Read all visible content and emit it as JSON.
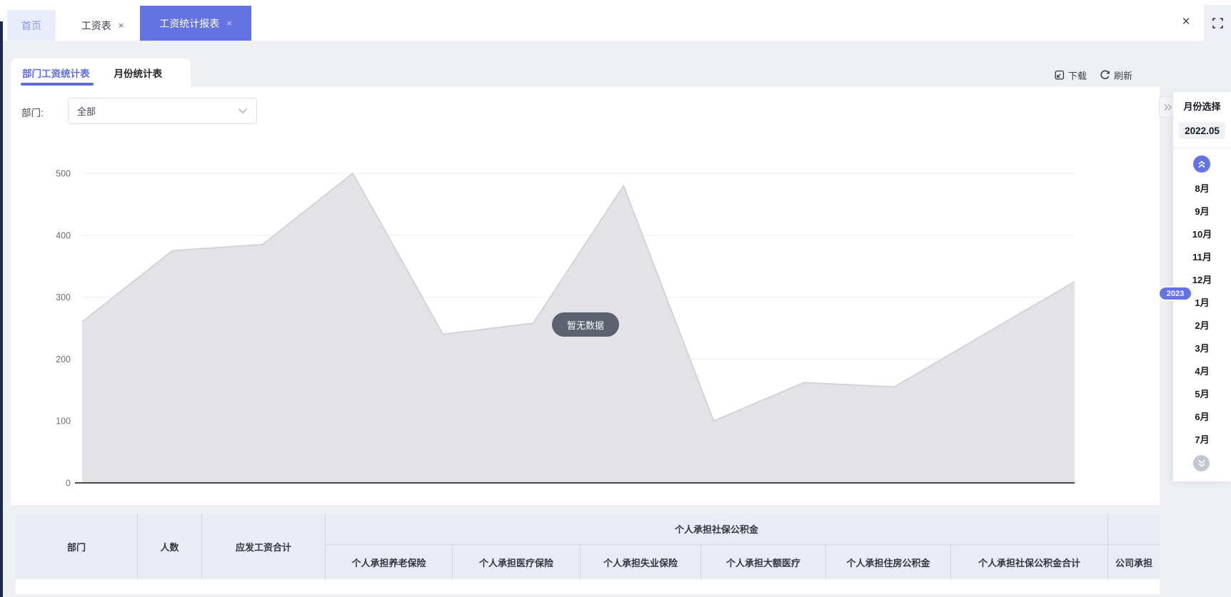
{
  "colors": {
    "accent": "#6572e2",
    "home_tab_bg": "#e9ecfb",
    "table_header_bg": "#e9ecf4",
    "nav_strip": "#1c2a4e"
  },
  "window": {
    "close_label": "×"
  },
  "tab_bar": {
    "home": {
      "label": "首页"
    },
    "payroll": {
      "label": "工资表",
      "close": "×"
    },
    "report": {
      "label": "工资统计报表",
      "close": "×"
    }
  },
  "sub_tabs": {
    "dept": "部门工资统计表",
    "month": "月份统计表"
  },
  "toolbar": {
    "download": "下载",
    "refresh": "刷新"
  },
  "filter": {
    "label": "部门:",
    "value": "全部"
  },
  "chart_data": {
    "type": "area",
    "series": [
      {
        "name": "部门工资",
        "values": [
          260,
          375,
          385,
          500,
          240,
          258,
          480,
          100,
          162,
          155,
          240,
          325
        ]
      }
    ],
    "ylim": [
      0,
      500
    ],
    "yticks": [
      0,
      100,
      200,
      300,
      400,
      500
    ],
    "grid": true,
    "x_tick_labels": [],
    "legend": "none",
    "area_fill": "#e3e3e7",
    "area_stroke": "#d3d3d8",
    "grid_color": "#ececf2",
    "axis_color": "#474747",
    "tick_label_color": "#6e6e73",
    "overlay_label": "暂无数据"
  },
  "month_selector": {
    "title": "月份选择",
    "current": "2022.05",
    "year_badge": "2023",
    "months": [
      "8月",
      "9月",
      "10月",
      "11月",
      "12月",
      "1月",
      "2月",
      "3月",
      "4月",
      "5月",
      "6月",
      "7月"
    ]
  },
  "table": {
    "columns": [
      "部门",
      "人数",
      "应发工资合计"
    ],
    "group": {
      "label": "个人承担社保公积金",
      "children": [
        "个人承担养老保险",
        "个人承担医疗保险",
        "个人承担失业保险",
        "个人承担大额医疗",
        "个人承担住房公积金",
        "个人承担社保公积金合计"
      ]
    },
    "partial_last_column": "公司承担"
  }
}
